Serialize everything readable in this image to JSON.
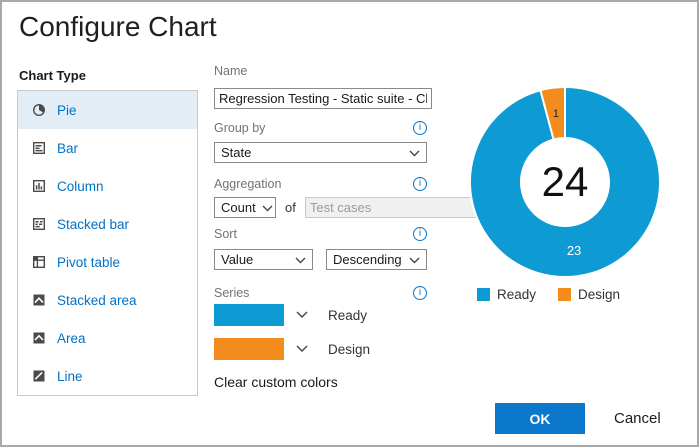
{
  "dialog": {
    "title": "Configure Chart",
    "ok_label": "OK",
    "cancel_label": "Cancel"
  },
  "colors": {
    "accent_blue": "#0b78cb",
    "link_blue": "#0072c6",
    "selected_row_bg": "#e2edf5"
  },
  "icons": {
    "info_glyph": "i"
  },
  "chart_type": {
    "label": "Chart Type",
    "items": [
      {
        "label": "Pie",
        "icon": "pie-chart-icon",
        "selected": true
      },
      {
        "label": "Bar",
        "icon": "bar-chart-icon",
        "selected": false
      },
      {
        "label": "Column",
        "icon": "column-chart-icon",
        "selected": false
      },
      {
        "label": "Stacked bar",
        "icon": "stacked-bar-icon",
        "selected": false
      },
      {
        "label": "Pivot table",
        "icon": "pivot-table-icon",
        "selected": false
      },
      {
        "label": "Stacked area",
        "icon": "stacked-area-icon",
        "selected": false
      },
      {
        "label": "Area",
        "icon": "area-chart-icon",
        "selected": false
      },
      {
        "label": "Line",
        "icon": "line-chart-icon",
        "selected": false
      }
    ]
  },
  "form": {
    "name": {
      "label": "Name",
      "value": "Regression Testing - Static suite - Ch"
    },
    "group_by": {
      "label": "Group by",
      "value": "State"
    },
    "aggregation": {
      "label": "Aggregation",
      "operator": "Count",
      "of_label": "of",
      "field_value": "Test cases",
      "field_disabled": true
    },
    "sort": {
      "label": "Sort",
      "field": "Value",
      "direction": "Descending"
    },
    "series": {
      "label": "Series",
      "items": [
        {
          "name": "Ready",
          "color": "#0e9bd3"
        },
        {
          "name": "Design",
          "color": "#f38b1d"
        }
      ]
    },
    "clear_colors_label": "Clear custom colors"
  },
  "chart_data": {
    "type": "pie",
    "subtype": "donut",
    "title": "",
    "center_label": "24",
    "total": 24,
    "slices": [
      {
        "label": "Ready",
        "value": 23,
        "color": "#0e9bd3",
        "label_color": "#ffffff"
      },
      {
        "label": "Design",
        "value": 1,
        "color": "#f38b1d",
        "label_color": "#222222"
      }
    ],
    "start_angle_deg": 0,
    "direction": "clockwise",
    "legend_position": "bottom"
  }
}
